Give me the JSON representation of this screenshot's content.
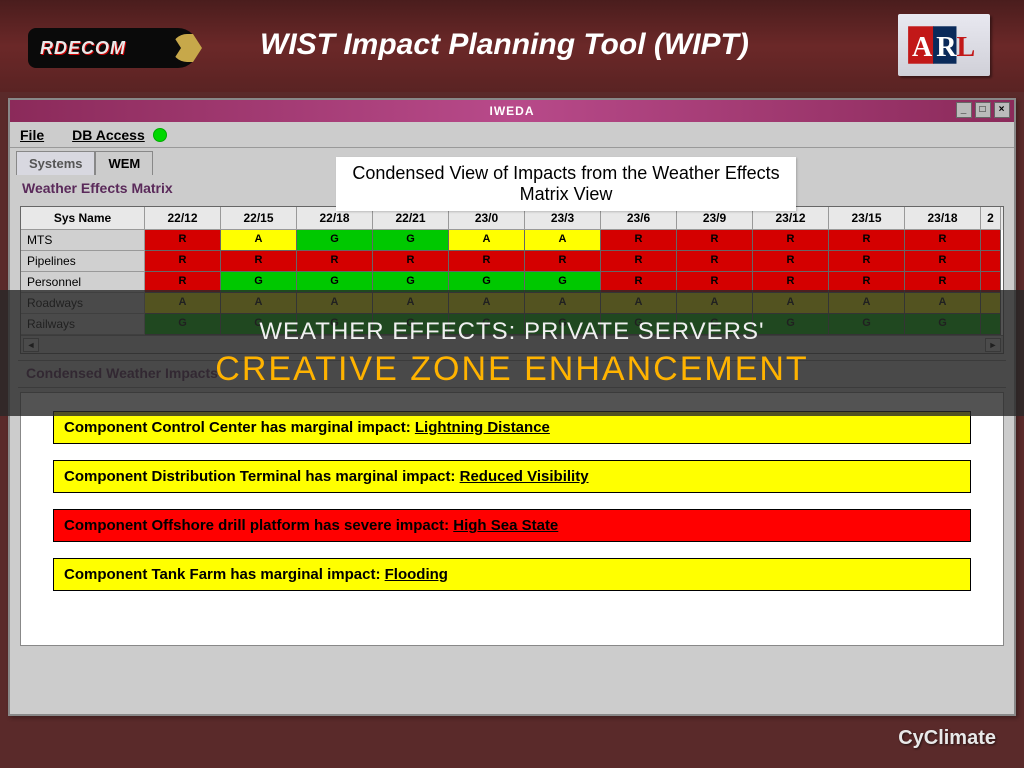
{
  "banner": {
    "rdecom": "RDECOM",
    "title": "WIST Impact Planning Tool (WIPT)",
    "arl_text_a": "A",
    "arl_text_r": "R",
    "arl_text_l": "L"
  },
  "window": {
    "title": "IWEDA",
    "menu_file": "File",
    "menu_db": "DB Access",
    "tab_systems": "Systems",
    "tab_wem": "WEM",
    "section1": "Weather Effects Matrix",
    "section2": "Condensed Weather Impacts",
    "callout": "Condensed View of Impacts from the Weather Effects Matrix View"
  },
  "matrix": {
    "headers": [
      "Sys Name",
      "22/12",
      "22/15",
      "22/18",
      "22/21",
      "23/0",
      "23/3",
      "23/6",
      "23/9",
      "23/12",
      "23/15",
      "23/18",
      "2"
    ],
    "rows": [
      {
        "name": "MTS",
        "cells": [
          "R",
          "A",
          "G",
          "G",
          "A",
          "A",
          "R",
          "R",
          "R",
          "R",
          "R"
        ]
      },
      {
        "name": "Pipelines",
        "cells": [
          "R",
          "R",
          "R",
          "R",
          "R",
          "R",
          "R",
          "R",
          "R",
          "R",
          "R"
        ]
      },
      {
        "name": "Personnel",
        "cells": [
          "R",
          "G",
          "G",
          "G",
          "G",
          "G",
          "R",
          "R",
          "R",
          "R",
          "R"
        ]
      },
      {
        "name": "Roadways",
        "cells": [
          "A",
          "A",
          "A",
          "A",
          "A",
          "A",
          "A",
          "A",
          "A",
          "A",
          "A"
        ]
      },
      {
        "name": "Railways",
        "cells": [
          "G",
          "G",
          "G",
          "G",
          "G",
          "G",
          "G",
          "G",
          "G",
          "G",
          "G"
        ]
      }
    ],
    "colors": {
      "R": "#d40000",
      "A": "#ffff00",
      "G": "#00c800"
    }
  },
  "impacts": [
    {
      "severity": "y",
      "prefix": "Component Control Center has marginal impact: ",
      "link": "Lightning Distance"
    },
    {
      "severity": "y",
      "prefix": "Component Distribution Terminal has marginal impact: ",
      "link": "Reduced Visibility"
    },
    {
      "severity": "r",
      "prefix": "Component Offshore drill platform has severe impact: ",
      "link": "High Sea State"
    },
    {
      "severity": "y",
      "prefix": "Component Tank Farm has marginal impact: ",
      "link": "Flooding"
    }
  ],
  "overlay": {
    "line1": "WEATHER EFFECTS: PRIVATE SERVERS'",
    "line2": "CREATIVE ZONE ENHANCEMENT"
  },
  "footer": {
    "brand": "CyClimate"
  }
}
